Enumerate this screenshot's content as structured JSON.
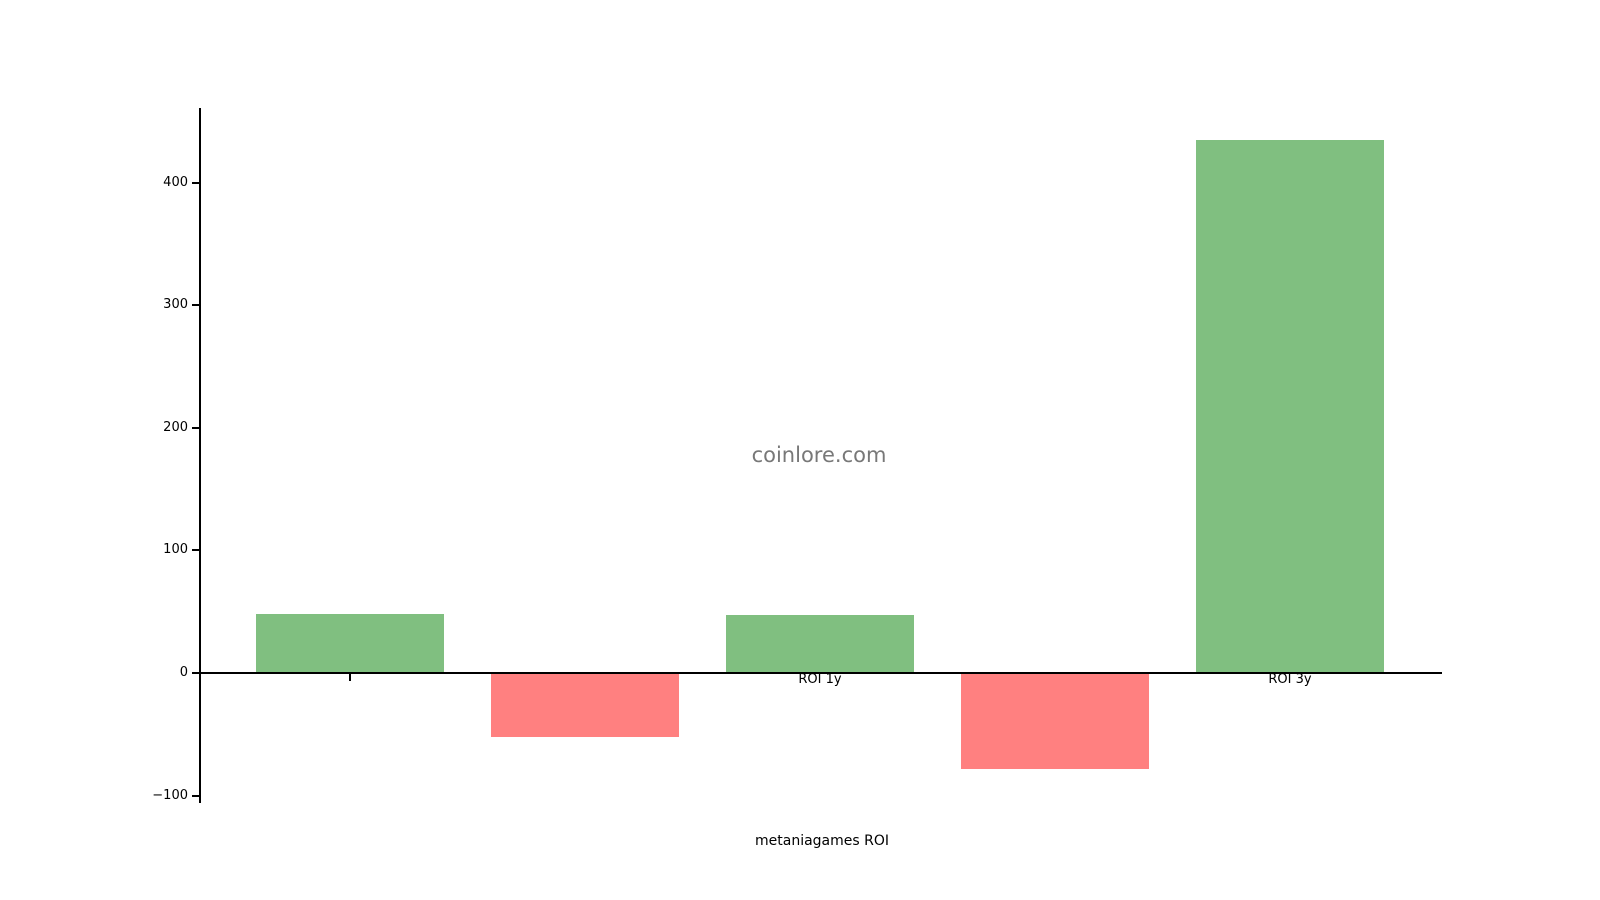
{
  "watermark": "coinlore.com",
  "chart_data": {
    "type": "bar",
    "title": "",
    "xlabel": "metaniagames ROI",
    "ylabel": "",
    "categories": [
      "",
      "",
      "ROI 1y",
      "",
      "ROI 3y"
    ],
    "values": [
      48,
      -52,
      47,
      -78,
      435
    ],
    "positive_color": "#80bf80",
    "negative_color": "#ff8080",
    "axis_color": "#000000",
    "watermark_color": "#787878",
    "y_ticks": [
      400,
      300,
      200,
      100,
      0,
      -100
    ],
    "ylim": [
      -106,
      461
    ],
    "grid": false,
    "legend_position": "none"
  }
}
